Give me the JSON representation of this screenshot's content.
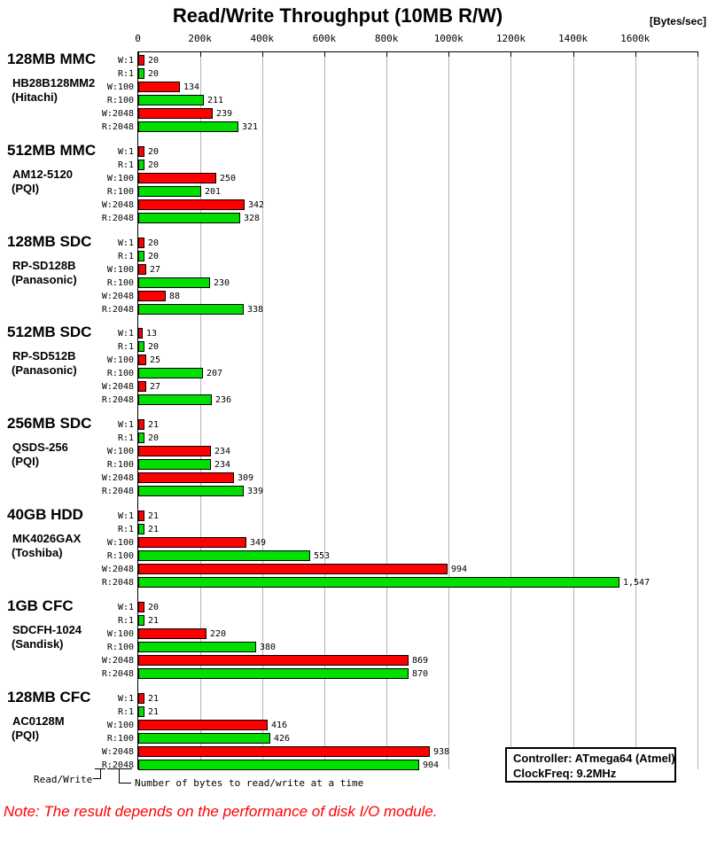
{
  "title": "Read/Write Throughput (10MB R/W)",
  "axis_unit": "[Bytes/sec]",
  "legend": {
    "read_write": "Read/Write",
    "bytes_note": "Number of bytes to read/write at a time"
  },
  "info_box": {
    "controller": "Controller: ATmega64 (Atmel)",
    "clock_freq": "ClockFreq: 9.2MHz"
  },
  "footnote": "Note: The result depends on the performance of disk I/O module.",
  "chart_data": {
    "type": "bar",
    "orientation": "horizontal",
    "title": "Read/Write Throughput (10MB R/W)",
    "xlabel_unit": "[Bytes/sec]",
    "x_tick_labels": [
      "0",
      "200k",
      "400k",
      "600k",
      "800k",
      "1000k",
      "1200k",
      "1400k",
      "1600k"
    ],
    "xlim_k": [
      0,
      1800
    ],
    "grid": true,
    "values_unit": "kBytes/sec (labels shown in thousands of Bytes/sec)",
    "bar_categories": [
      "W:1",
      "R:1",
      "W:100",
      "R:100",
      "W:2048",
      "R:2048"
    ],
    "series_colors": {
      "write": "#ff0000",
      "read": "#00df00"
    },
    "gridline_color": "#b4b4b4",
    "groups": [
      {
        "capacity": "128MB MMC",
        "model": "HB28B128MM2",
        "maker": "(Hitachi)",
        "values": [
          20,
          20,
          134,
          211,
          239,
          321
        ]
      },
      {
        "capacity": "512MB MMC",
        "model": "AM12-5120",
        "maker": "(PQI)",
        "values": [
          20,
          20,
          250,
          201,
          342,
          328
        ]
      },
      {
        "capacity": "128MB SDC",
        "model": "RP-SD128B",
        "maker": "(Panasonic)",
        "values": [
          20,
          20,
          27,
          230,
          88,
          338
        ]
      },
      {
        "capacity": "512MB SDC",
        "model": "RP-SD512B",
        "maker": "(Panasonic)",
        "values": [
          13,
          20,
          25,
          207,
          27,
          236
        ]
      },
      {
        "capacity": "256MB SDC",
        "model": "QSDS-256",
        "maker": "(PQI)",
        "values": [
          21,
          20,
          234,
          234,
          309,
          339
        ]
      },
      {
        "capacity": "40GB HDD",
        "model": "MK4026GAX",
        "maker": "(Toshiba)",
        "values": [
          21,
          21,
          349,
          553,
          994,
          1547
        ]
      },
      {
        "capacity": "1GB CFC",
        "model": "SDCFH-1024",
        "maker": "(Sandisk)",
        "values": [
          20,
          21,
          220,
          380,
          869,
          870
        ]
      },
      {
        "capacity": "128MB CFC",
        "model": "AC0128M",
        "maker": "(PQI)",
        "values": [
          21,
          21,
          416,
          426,
          938,
          904
        ]
      }
    ]
  }
}
